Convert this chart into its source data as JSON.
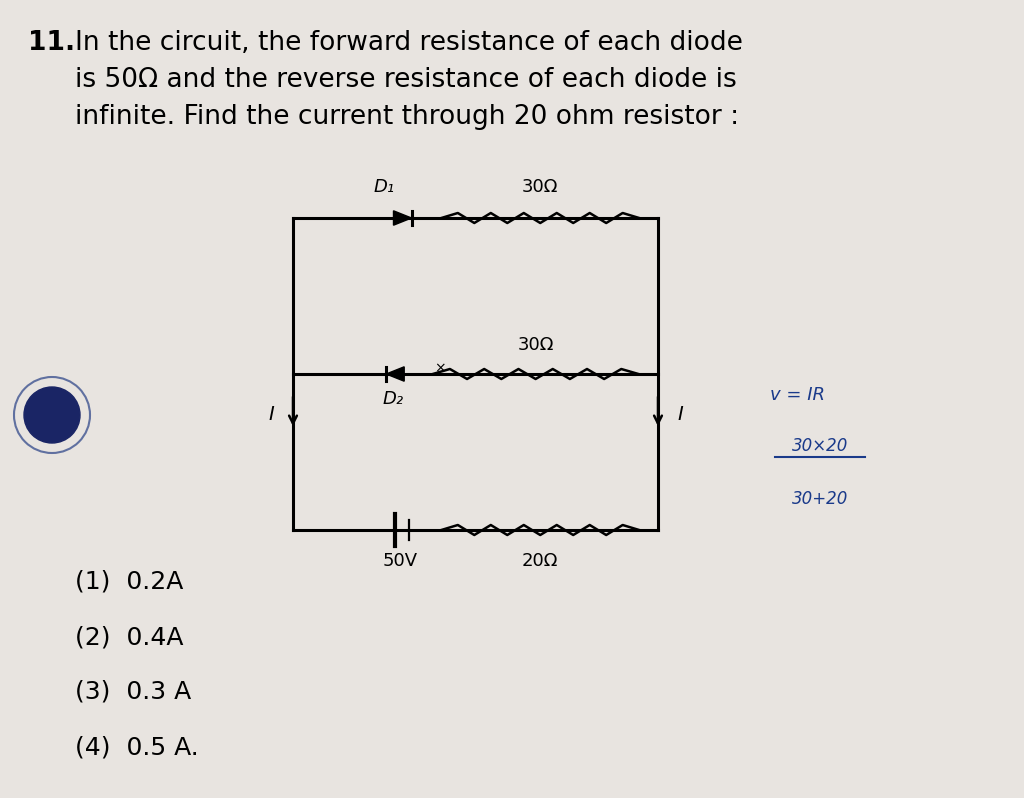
{
  "background_color": "#e8e4e0",
  "title_number": "11.",
  "title_text": "In the circuit, the forward resistance of each diode\nis 50Ω and the reverse resistance of each diode is\ninfinite. Find the current through 20 ohm resistor :",
  "title_fontsize": 19,
  "options": [
    "(1)  0.2A",
    "(2)  0.4A",
    "(3)  0.3 A",
    "(4)  0.5 A."
  ],
  "options_fontsize": 18,
  "circuit": {
    "top_diode_label": "D₁",
    "top_resistor_label": "30Ω",
    "mid_diode_label": "D₂",
    "mid_resistor_label": "30Ω",
    "bottom_voltage_label": "50V",
    "bottom_resistor_label": "20Ω",
    "current_label": "I"
  },
  "handwritten": {
    "v_ir": "v = IR",
    "frac_top": "30×20",
    "frac_bot": "30+20"
  }
}
